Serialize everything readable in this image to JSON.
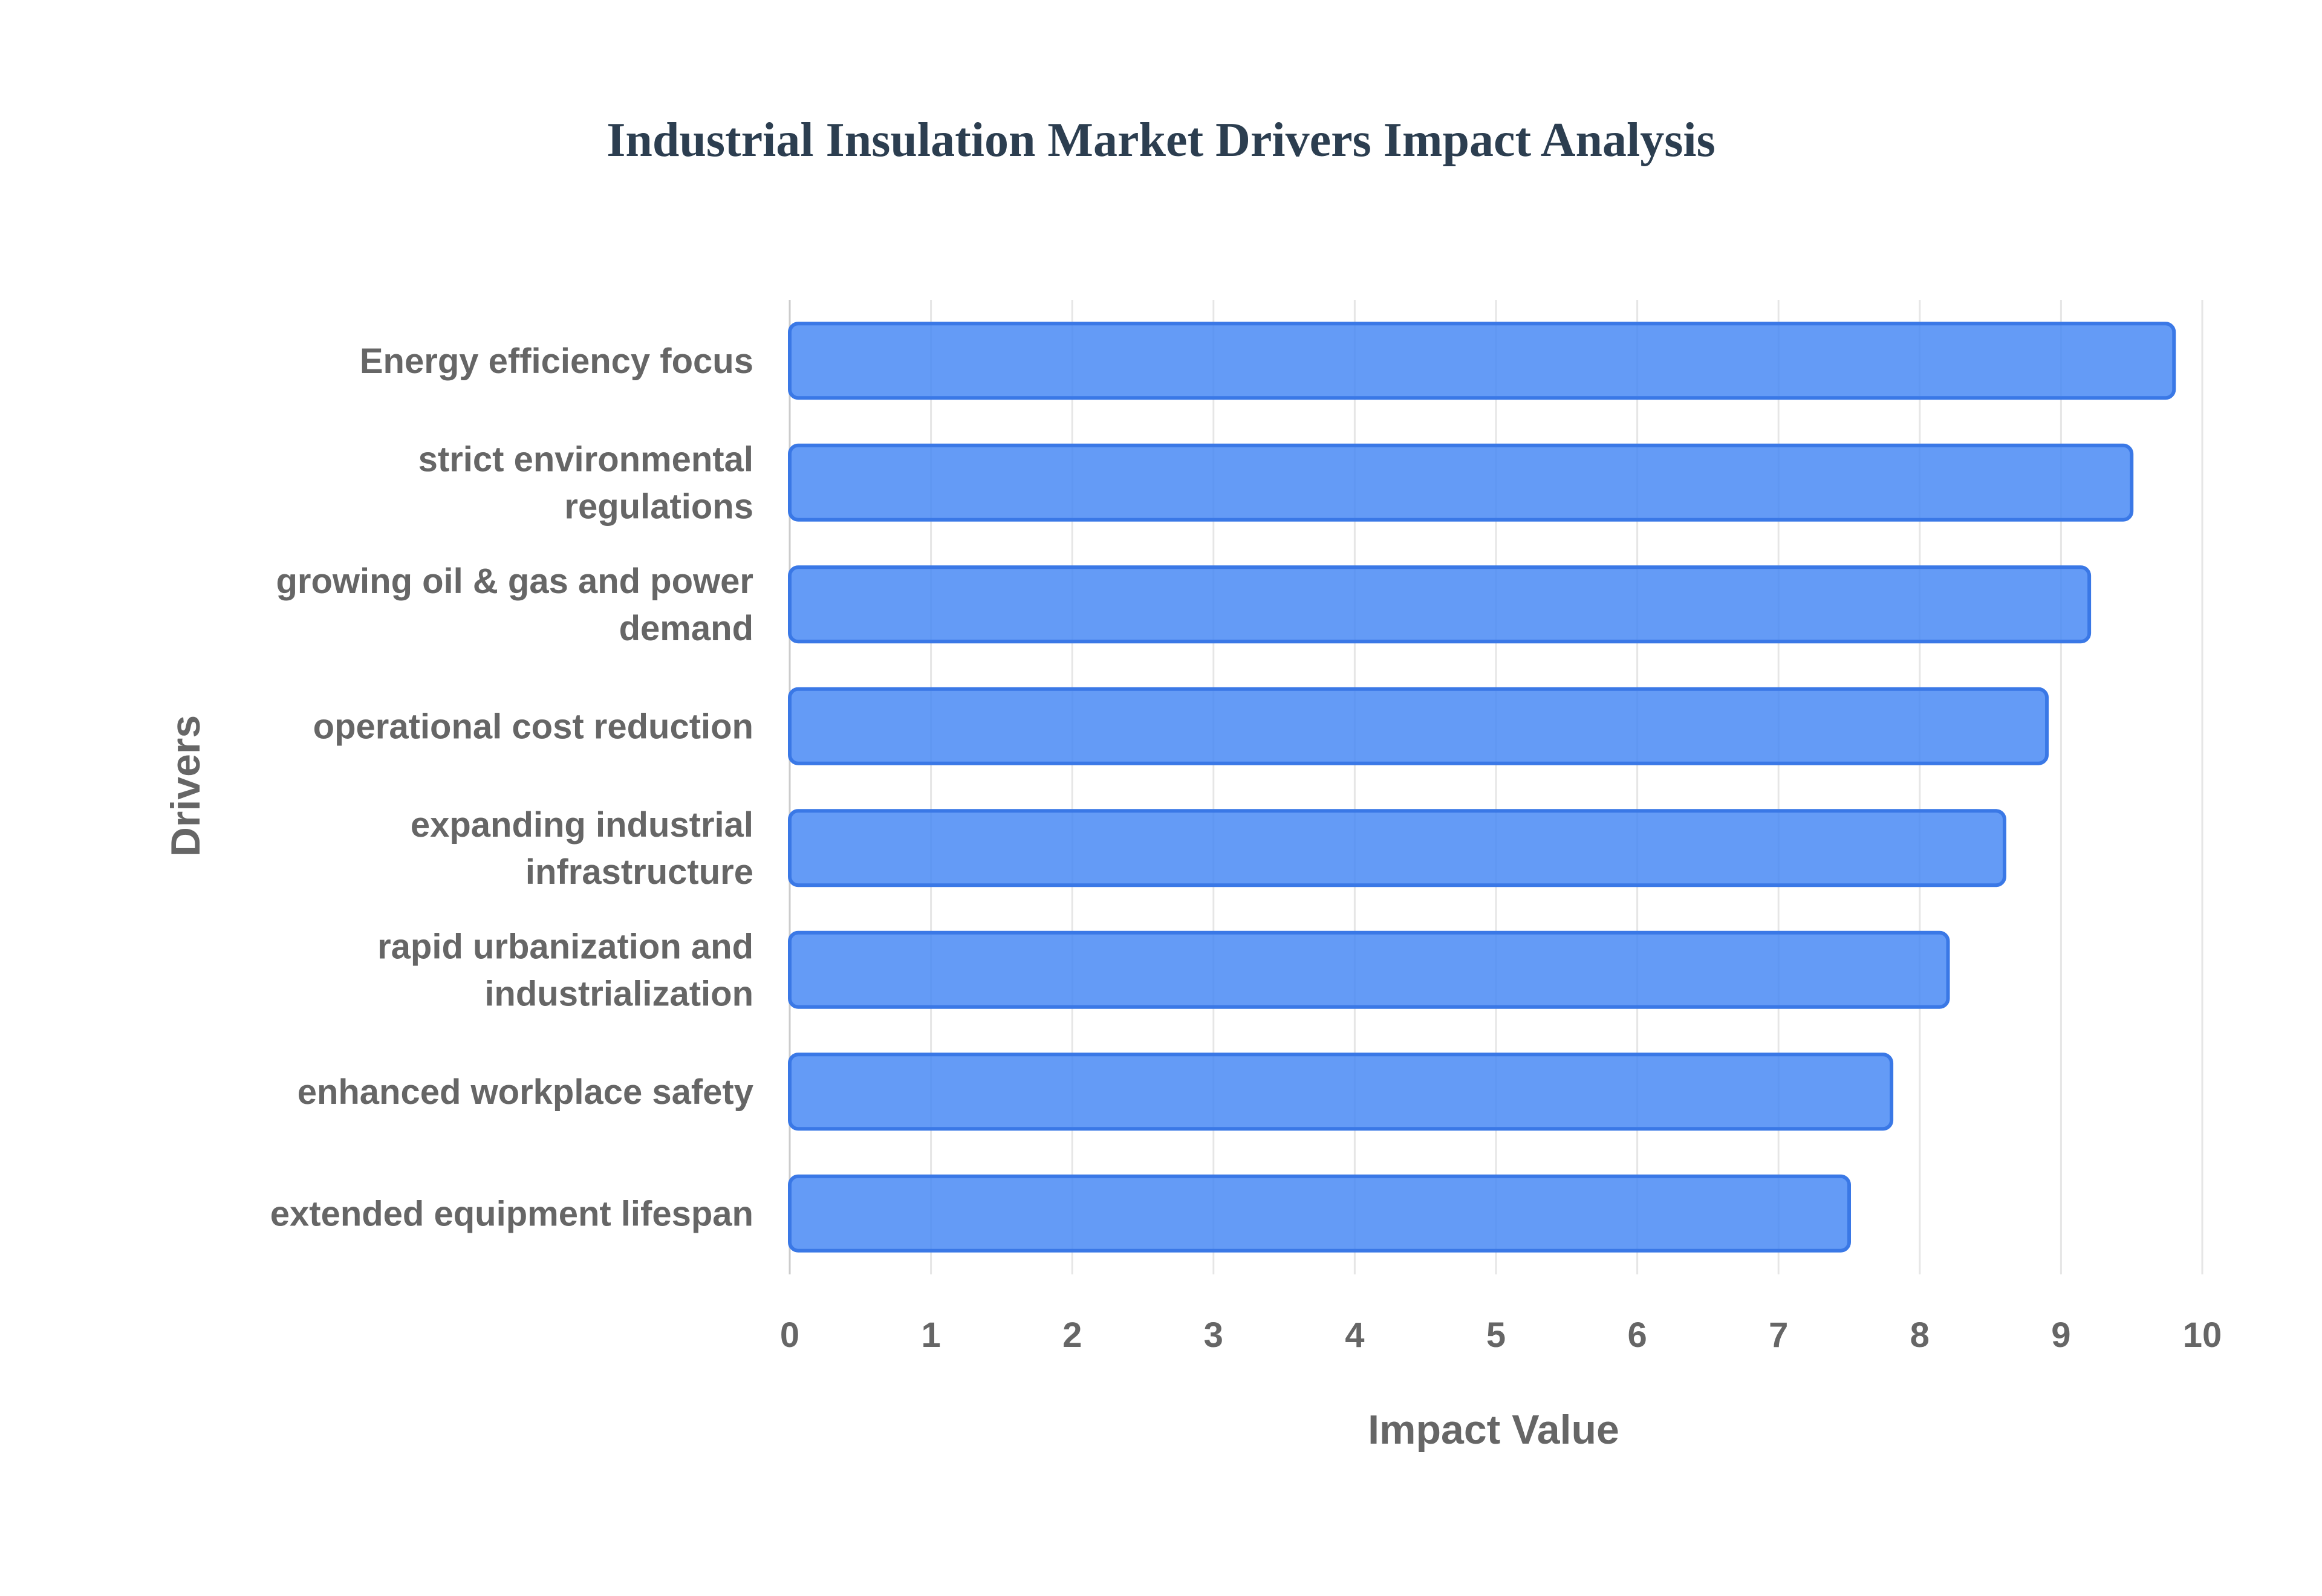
{
  "chart_data": {
    "type": "bar",
    "orientation": "horizontal",
    "title": "Industrial Insulation Market Drivers Impact Analysis",
    "xlabel": "Impact Value",
    "ylabel": "Drivers",
    "xlim": [
      0,
      10
    ],
    "x_ticks": [
      "0",
      "1",
      "2",
      "3",
      "4",
      "5",
      "6",
      "7",
      "8",
      "9",
      "10"
    ],
    "grid": true,
    "legend": "none",
    "categories": [
      [
        "Energy efficiency focus"
      ],
      [
        "strict environmental",
        "regulations"
      ],
      [
        "growing oil & gas and power",
        "demand"
      ],
      [
        "operational cost reduction"
      ],
      [
        "expanding industrial",
        "infrastructure"
      ],
      [
        "rapid urbanization and",
        "industrialization"
      ],
      [
        "enhanced workplace safety"
      ],
      [
        "extended equipment lifespan"
      ]
    ],
    "values": [
      9.8,
      9.5,
      9.2,
      8.9,
      8.6,
      8.2,
      7.8,
      7.5
    ],
    "colors": {
      "bar_fill": "#4285f4",
      "bar_stroke": "#3a78e6",
      "title": "#2c3e50",
      "text": "#666666"
    }
  }
}
